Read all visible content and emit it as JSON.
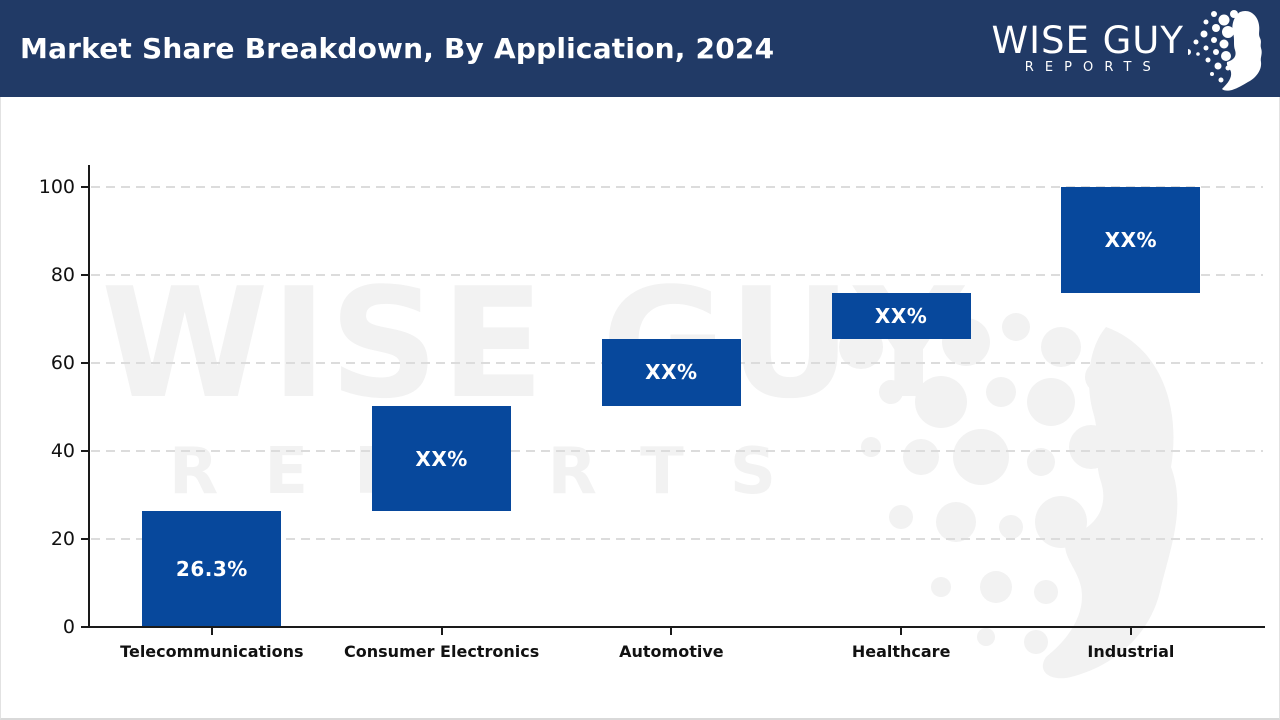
{
  "header": {
    "title": "Market Share Breakdown, By Application, 2024",
    "bg_color": "#213a66",
    "logo": {
      "brand": "WISE GUY",
      "sub": "REPORTS"
    }
  },
  "watermark": {
    "line1": "WISE GUY",
    "line2": "REPORTS"
  },
  "chart_data": {
    "type": "bar",
    "variant": "waterfall",
    "title": "Market Share Breakdown, By Application, 2024",
    "xlabel": "",
    "ylabel": "",
    "ylim": [
      0,
      100
    ],
    "yticks": [
      0,
      20,
      40,
      60,
      80,
      100
    ],
    "grid": "horizontal-dashed",
    "legend": "none",
    "bar_color": "#07489c",
    "bar_label_color": "#ffffff",
    "categories": [
      "Telecommunications",
      "Consumer Electronics",
      "Automotive",
      "Healthcare",
      "Industrial"
    ],
    "segments": [
      {
        "category": "Telecommunications",
        "start": 0,
        "end": 26.3,
        "label": "26.3%"
      },
      {
        "category": "Consumer Electronics",
        "start": 26.3,
        "end": 50.2,
        "label": "XX%"
      },
      {
        "category": "Automotive",
        "start": 50.2,
        "end": 65.5,
        "label": "XX%"
      },
      {
        "category": "Healthcare",
        "start": 65.5,
        "end": 75.9,
        "label": "XX%"
      },
      {
        "category": "Industrial",
        "start": 75.9,
        "end": 100,
        "label": "XX%"
      }
    ]
  }
}
